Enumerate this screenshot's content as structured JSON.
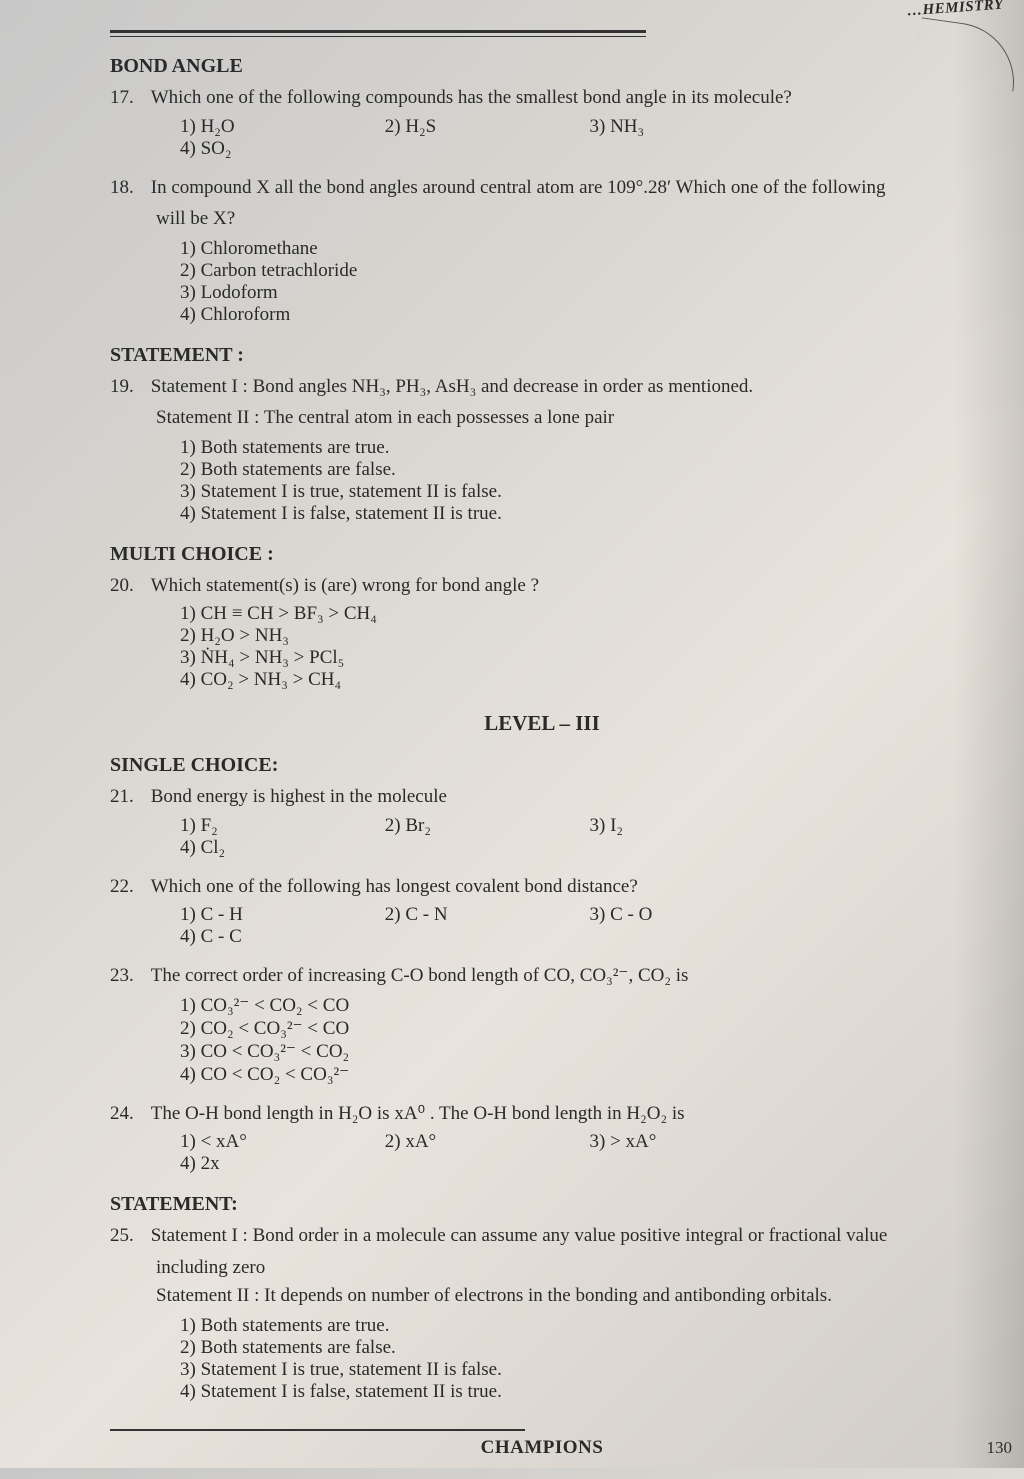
{
  "corner_tag": "…HEMISTRY",
  "footer": "CHAMPIONS",
  "page_number": "130",
  "sections": {
    "bond_angle": "BOND ANGLE",
    "statement1": "STATEMENT :",
    "multi": "MULTI CHOICE :",
    "level": "LEVEL – III",
    "single": "SINGLE CHOICE:",
    "statement2": "STATEMENT:"
  },
  "q17": {
    "num": "17.",
    "text": "Which one of the following compounds has the smallest bond angle in its molecule?",
    "o1": "1) H₂O",
    "o2": "2) H₂S",
    "o3": "3) NH₃",
    "o4": "4) SO₂"
  },
  "q18": {
    "num": "18.",
    "text": "In compound X all the bond angles around central atom are 109°.28′ Which one of the following",
    "sub": "will be X?",
    "o1": "1) Chloromethane",
    "o2": "2) Carbon tetrachloride",
    "o3": "3) Lodoform",
    "o4": "4) Chloroform"
  },
  "q19": {
    "num": "19.",
    "text": "Statement I : Bond angles NH₃, PH₃, AsH₃ and decrease in order as mentioned.",
    "sub": "Statement II : The central atom in each possesses a lone pair",
    "o1": "1) Both statements are true.",
    "o2": "2) Both statements are false.",
    "o3": "3) Statement I is true, statement II is false.",
    "o4": "4) Statement I is false, statement II is true."
  },
  "q20": {
    "num": "20.",
    "text": "Which statement(s) is (are) wrong for bond angle ?",
    "o1": "1) CH ≡ CH > BF₃ > CH₄",
    "o2": "2) H₂O > NH₃",
    "o3": "3) ṄH₄ > NH₃ > PCl₅",
    "o4": "4) CO₂ > NH₃ > CH₄"
  },
  "q21": {
    "num": "21.",
    "text": "Bond energy is highest in the molecule",
    "o1": "1) F₂",
    "o2": "2) Br₂",
    "o3": "3) I₂",
    "o4": "4) Cl₂"
  },
  "q22": {
    "num": "22.",
    "text": "Which one of the following has longest covalent bond distance?",
    "o1": "1) C - H",
    "o2": "2) C - N",
    "o3": "3) C - O",
    "o4": "4) C - C"
  },
  "q23": {
    "num": "23.",
    "text": "The correct order of increasing C-O bond length of CO, CO₃²⁻, CO₂ is",
    "o1": "1) CO₃²⁻ < CO₂ < CO",
    "o2": "2) CO₂ < CO₃²⁻ < CO",
    "o3": "3) CO < CO₃²⁻ < CO₂",
    "o4": "4) CO < CO₂ < CO₃²⁻"
  },
  "q24": {
    "num": "24.",
    "text": "The O-H bond length in H₂O is xA⁰ . The O-H bond length in H₂O₂ is",
    "o1": "1) < xA°",
    "o2": "2) xA°",
    "o3": "3) > xA°",
    "o4": "4) 2x"
  },
  "q25": {
    "num": "25.",
    "text": "Statement I : Bond order in a molecule can assume any value positive integral or fractional value",
    "sub1": "including zero",
    "sub2": "Statement II : It depends on number of electrons in the bonding and antibonding orbitals.",
    "o1": "1) Both statements are true.",
    "o2": "2) Both statements are false.",
    "o3": "3) Statement I is true, statement II is false.",
    "o4": "4) Statement I is false, statement II is true."
  }
}
